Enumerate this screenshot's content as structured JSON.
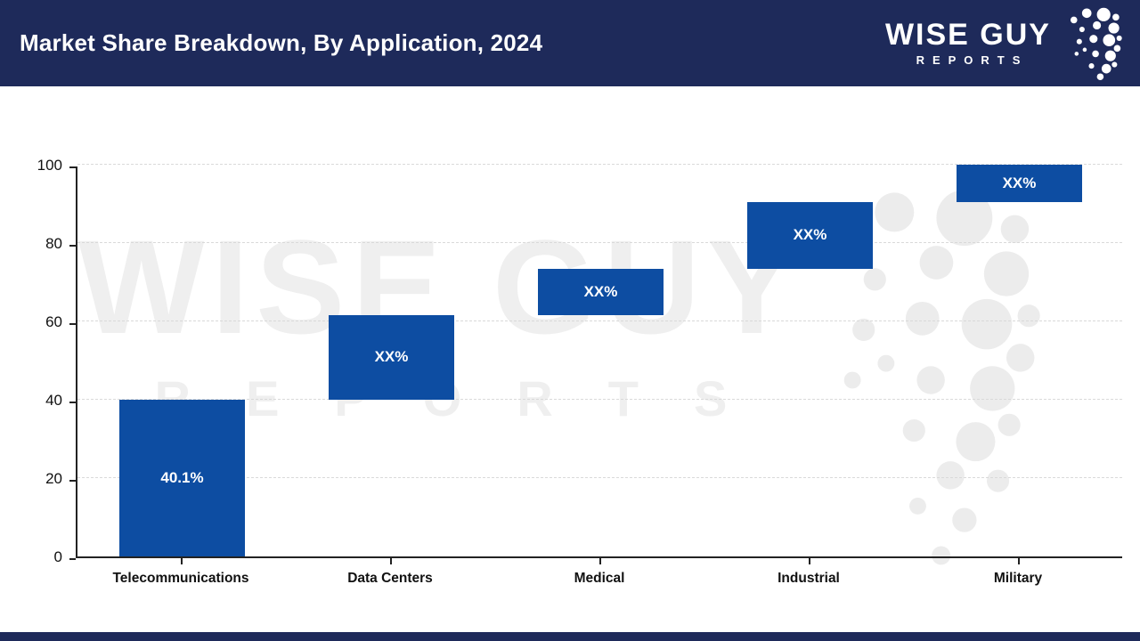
{
  "header": {
    "title": "Market Share Breakdown, By Application, 2024",
    "bg_color": "#1e2a5a",
    "logo": {
      "line1": "WISE GUY",
      "line2": "REPORTS"
    }
  },
  "watermark": {
    "line1": "WISE GUY",
    "line2": "REPORTS"
  },
  "chart_data": {
    "type": "bar",
    "subtype": "waterfall",
    "title": "Market Share Breakdown, By Application, 2024",
    "categories": [
      "Telecommunications",
      "Data Centers",
      "Medical",
      "Industrial",
      "Military"
    ],
    "segments": [
      {
        "category": "Telecommunications",
        "start": 0,
        "end": 40.1,
        "label": "40.1%"
      },
      {
        "category": "Data Centers",
        "start": 40.1,
        "end": 61.5,
        "label": "XX%"
      },
      {
        "category": "Medical",
        "start": 61.5,
        "end": 73.5,
        "label": "XX%"
      },
      {
        "category": "Industrial",
        "start": 73.5,
        "end": 90.5,
        "label": "XX%"
      },
      {
        "category": "Military",
        "start": 90.5,
        "end": 100,
        "label": "XX%"
      }
    ],
    "xlabel": "",
    "ylabel": "",
    "ylim": [
      0,
      100
    ],
    "yticks": [
      0,
      20,
      40,
      60,
      80,
      100
    ],
    "grid": "dashed-horizontal",
    "legend": "none",
    "bar_color": "#0d4da2",
    "bar_label_color": "#ffffff"
  }
}
